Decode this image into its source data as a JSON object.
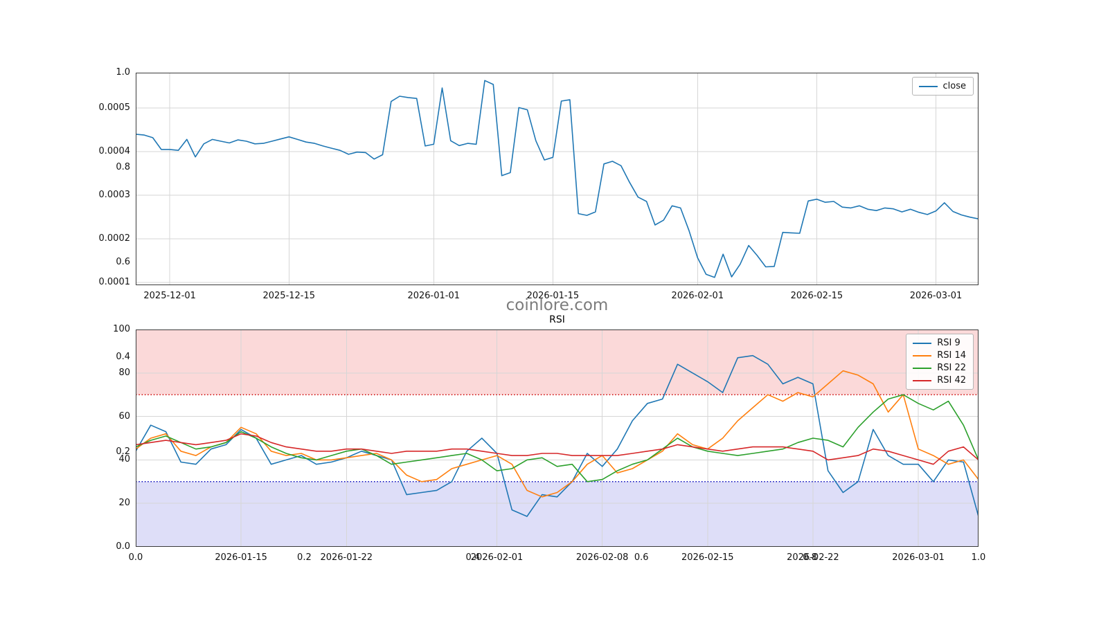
{
  "watermark": "coinlore.com",
  "background_axis": {
    "y_labels": [
      "1.0",
      "0.8",
      "0.6",
      "0.4",
      "0.2",
      "0.0"
    ],
    "x_labels": [
      "0.0",
      "0.2",
      "0.4",
      "0.6",
      "0.8",
      "1.0"
    ]
  },
  "colors": {
    "blue": "#1f77b4",
    "orange": "#ff7f0e",
    "green": "#2ca02c",
    "red": "#d62728",
    "grid": "#d6d6d6",
    "overbought_fill": "#fbd9d9",
    "oversold_fill": "#dedef8",
    "overbought_line": "#cc0000",
    "oversold_line": "#0000bb"
  },
  "chart_data": [
    {
      "type": "line",
      "title": "",
      "grid": true,
      "legend_position": "upper right",
      "n": 100,
      "ylim": [
        9.4e-05,
        0.000581
      ],
      "yticks": [
        0.0005,
        0.0004,
        0.0003,
        0.0002,
        0.0001
      ],
      "ytick_labels": [
        "0.0005",
        "0.0004",
        "0.0003",
        "0.0002",
        "0.0001"
      ],
      "xtick_idx": [
        4,
        18,
        35,
        49,
        66,
        80,
        94
      ],
      "xtick_labels": [
        "2025-12-01",
        "2025-12-15",
        "2026-01-01",
        "2026-01-15",
        "2026-02-01",
        "2026-02-15",
        "2026-03-01"
      ],
      "series": [
        {
          "name": "close",
          "color": "#1f77b4",
          "values": [
            0.00044,
            0.000438,
            0.000432,
            0.000405,
            0.000405,
            0.000403,
            0.000428,
            0.000388,
            0.000418,
            0.000428,
            0.000424,
            0.00042,
            0.000427,
            0.000424,
            0.000418,
            0.000419,
            0.000424,
            0.000429,
            0.000434,
            0.000428,
            0.000422,
            0.000419,
            0.000413,
            0.000408,
            0.000403,
            0.000394,
            0.000399,
            0.000398,
            0.000383,
            0.000393,
            0.000515,
            0.000527,
            0.000524,
            0.000522,
            0.000413,
            0.000417,
            0.000546,
            0.000425,
            0.000414,
            0.000419,
            0.000417,
            0.000563,
            0.000554,
            0.000345,
            0.000352,
            0.000501,
            0.000496,
            0.000425,
            0.000381,
            0.000387,
            0.000516,
            0.000519,
            0.000258,
            0.000254,
            0.000262,
            0.000372,
            0.000378,
            0.000368,
            0.00033,
            0.000296,
            0.000286,
            0.000232,
            0.000243,
            0.000276,
            0.000271,
            0.000219,
            0.000157,
            0.000119,
            0.000112,
            0.000165,
            0.000113,
            0.000142,
            0.000185,
            0.000162,
            0.000136,
            0.000137,
            0.000215,
            0.000214,
            0.000213,
            0.000287,
            0.000291,
            0.000284,
            0.000286,
            0.000273,
            0.000271,
            0.000276,
            0.000268,
            0.000265,
            0.000271,
            0.000269,
            0.000262,
            0.000268,
            0.000261,
            0.000256,
            0.000264,
            0.000283,
            0.000263,
            0.000255,
            0.00025,
            0.000246
          ]
        }
      ]
    },
    {
      "type": "line",
      "title": "RSI",
      "grid": true,
      "legend_position": "upper right",
      "n": 57,
      "ylim": [
        0,
        100
      ],
      "yticks": [
        100,
        80,
        60,
        40,
        20
      ],
      "ytick_labels": [
        "100",
        "80",
        "60",
        "40",
        "20"
      ],
      "xtick_idx": [
        7,
        14,
        24,
        31,
        38,
        45,
        52
      ],
      "xtick_labels": [
        "2026-01-15",
        "2026-01-22",
        "2026-02-01",
        "2026-02-08",
        "2026-02-15",
        "2026-02-22",
        "2026-03-01"
      ],
      "bands": [
        {
          "from": 70,
          "to": 100,
          "color": "#fbd9d9"
        },
        {
          "from": 0,
          "to": 30,
          "color": "#dedef8"
        }
      ],
      "hlines": [
        {
          "y": 70,
          "color": "#cc0000"
        },
        {
          "y": 30,
          "color": "#0000bb"
        }
      ],
      "series": [
        {
          "name": "RSI 9",
          "color": "#1f77b4",
          "values": [
            44,
            56,
            53,
            39,
            38,
            45,
            47,
            54,
            50,
            38,
            40,
            42,
            38,
            39,
            41,
            44,
            42,
            40,
            24,
            25,
            26,
            30,
            44,
            50,
            43,
            17,
            14,
            24,
            23,
            30,
            43,
            37,
            45,
            58,
            66,
            68,
            84,
            80,
            76,
            71,
            87,
            88,
            84,
            75,
            78,
            75,
            35,
            25,
            30,
            54,
            42,
            38,
            38,
            30,
            40,
            39,
            14
          ]
        },
        {
          "name": "RSI 14",
          "color": "#ff7f0e",
          "values": [
            45,
            50,
            52,
            44,
            42,
            46,
            48,
            55,
            52,
            44,
            42,
            43,
            40,
            40,
            41,
            42,
            43,
            40,
            33,
            30,
            31,
            36,
            38,
            40,
            42,
            38,
            26,
            23,
            25,
            30,
            38,
            42,
            34,
            36,
            40,
            44,
            52,
            47,
            45,
            50,
            58,
            64,
            70,
            67,
            71,
            69,
            75,
            81,
            79,
            75,
            62,
            70,
            45,
            42,
            38,
            40,
            31
          ]
        },
        {
          "name": "RSI 22",
          "color": "#2ca02c",
          "values": [
            46,
            49,
            51,
            48,
            45,
            46,
            48,
            53,
            50,
            46,
            43,
            41,
            40,
            42,
            44,
            45,
            42,
            38,
            39,
            40,
            41,
            42,
            43,
            40,
            35,
            36,
            40,
            41,
            37,
            38,
            30,
            31,
            35,
            38,
            40,
            45,
            50,
            46,
            44,
            43,
            42,
            43,
            44,
            45,
            48,
            50,
            49,
            46,
            55,
            62,
            68,
            70,
            66,
            63,
            67,
            56,
            40
          ]
        },
        {
          "name": "RSI 42",
          "color": "#d62728",
          "values": [
            47,
            48,
            49,
            48,
            47,
            48,
            49,
            52,
            51,
            48,
            46,
            45,
            44,
            44,
            45,
            45,
            44,
            43,
            44,
            44,
            44,
            45,
            45,
            44,
            43,
            42,
            42,
            43,
            43,
            42,
            42,
            42,
            42,
            43,
            44,
            45,
            47,
            46,
            45,
            44,
            45,
            46,
            46,
            46,
            45,
            44,
            40,
            41,
            42,
            45,
            44,
            42,
            40,
            38,
            44,
            46,
            40
          ]
        }
      ]
    }
  ]
}
